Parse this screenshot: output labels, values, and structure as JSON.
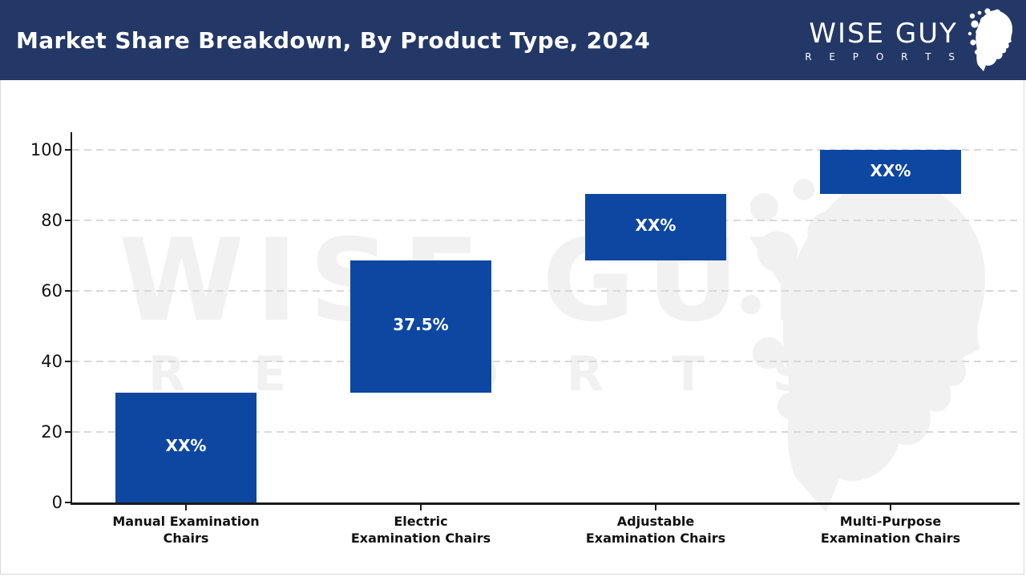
{
  "header": {
    "title": "Market Share Breakdown, By Product Type, 2024",
    "bg_color": "#233867",
    "logo": {
      "line1": "WISE GUY",
      "line2": "R E P O R T S",
      "face_icon": "dotted-head-profile"
    }
  },
  "watermark": {
    "line1": "WISE GUY",
    "line2": "R E P O R T S",
    "face_icon": "dotted-head-profile"
  },
  "chart_data": {
    "type": "bar",
    "subtype": "waterfall",
    "title": "Market Share Breakdown, By Product Type, 2024",
    "categories": [
      "Manual Examination\nChairs",
      "Electric\nExamination Chairs",
      "Adjustable\nExamination Chairs",
      "Multi-Purpose\nExamination Chairs"
    ],
    "series": [
      {
        "name": "Market Share (%)",
        "segments": [
          {
            "category": "Manual Examination Chairs",
            "label": "XX%",
            "start": 0,
            "end": 31.25
          },
          {
            "category": "Electric Examination Chairs",
            "label": "37.5%",
            "start": 31.25,
            "end": 68.75
          },
          {
            "category": "Adjustable Examination Chairs",
            "label": "XX%",
            "start": 68.75,
            "end": 87.5
          },
          {
            "category": "Multi-Purpose Examination Chairs",
            "label": "XX%",
            "start": 87.5,
            "end": 100
          }
        ]
      }
    ],
    "xlabel": "",
    "ylabel": "",
    "ylim": [
      0,
      100
    ],
    "yticks": [
      0,
      20,
      40,
      60,
      80,
      100
    ],
    "ytick_labels": [
      "0",
      "20",
      "40",
      "60",
      "80",
      "100"
    ],
    "grid": "horizontal-dashed",
    "legend": "none",
    "bar_color": "#0d47a1",
    "bar_label_color": "#ffffff",
    "gridline_color": "#d9d9d9",
    "axis_color": "#1a1a1a"
  }
}
